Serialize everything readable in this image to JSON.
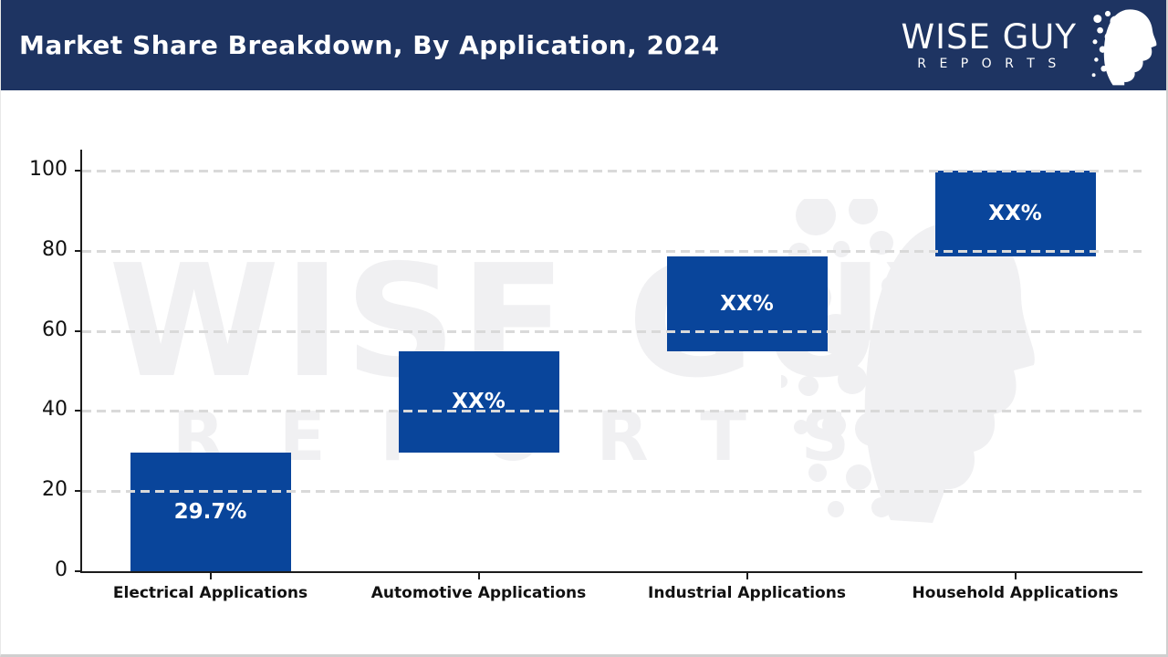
{
  "header": {
    "title": "Market Share Breakdown, By Application, 2024",
    "logo": {
      "name": "WISE GUY",
      "sub": "R E P O R T S"
    }
  },
  "watermark": {
    "line1": "WISE GUY",
    "line2": "REPORTS"
  },
  "chart_data": {
    "type": "bar",
    "subtype": "waterfall",
    "title": "Market Share Breakdown, By Application, 2024",
    "categories": [
      "Electrical Applications",
      "Automotive Applications",
      "Industrial Applications",
      "Household Applications"
    ],
    "segments": [
      {
        "category": "Electrical Applications",
        "start": 0,
        "end": 29.7,
        "label": "29.7%"
      },
      {
        "category": "Automotive Applications",
        "start": 29.7,
        "end": 55,
        "label": "XX%"
      },
      {
        "category": "Industrial Applications",
        "start": 55,
        "end": 78.5,
        "label": "XX%"
      },
      {
        "category": "Household Applications",
        "start": 78.5,
        "end": 100,
        "label": "XX%"
      }
    ],
    "ylim": [
      0,
      100
    ],
    "yticks": [
      0,
      20,
      40,
      60,
      80,
      100
    ],
    "xlabel": "",
    "ylabel": "",
    "grid": "horizontal-dashed",
    "legend": "none",
    "colors": {
      "bar": "#09459b",
      "header_bg": "#1e3462",
      "grid": "#d9d9d9",
      "axis": "#1c1c1c",
      "watermark": "#f0f0f2",
      "bar_label_text": "#ffffff"
    }
  }
}
